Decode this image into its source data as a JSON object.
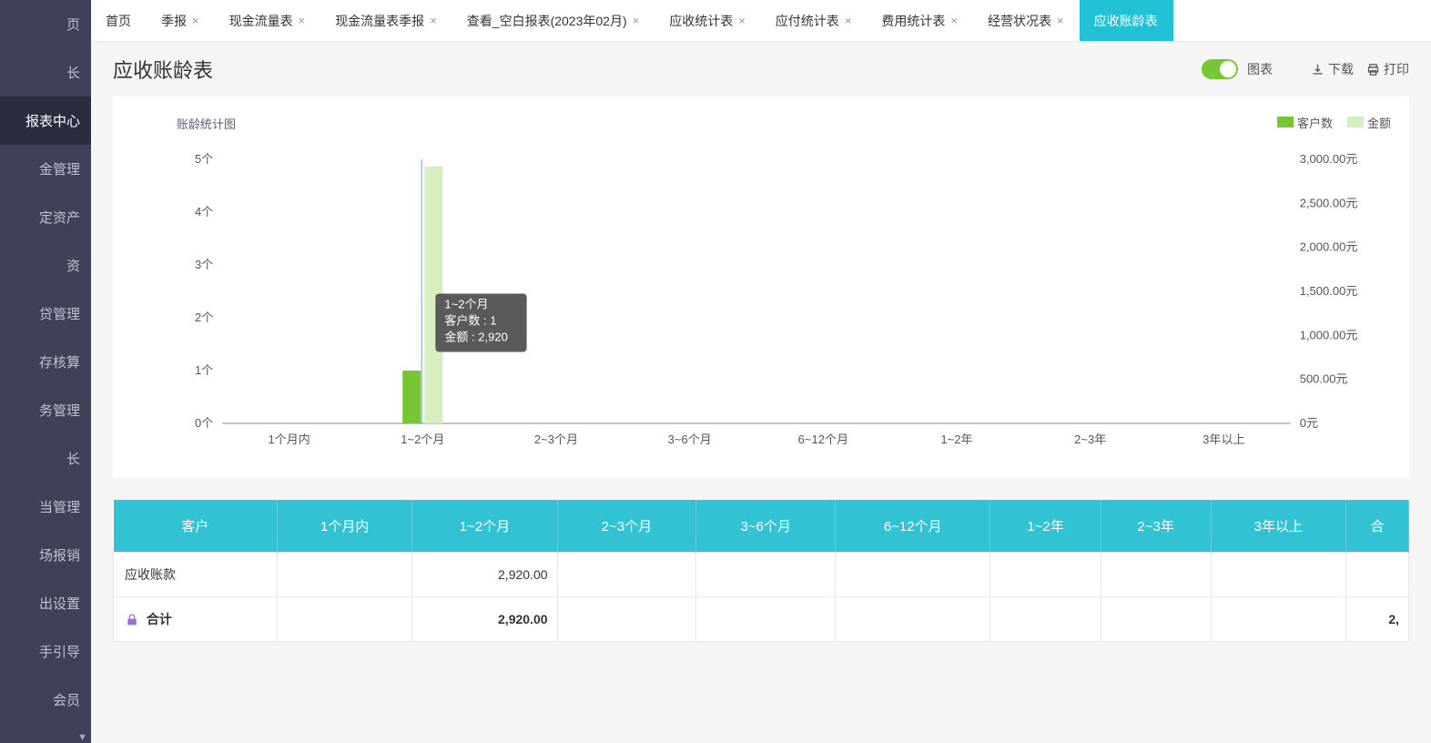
{
  "sidebar": {
    "items": [
      {
        "label": "页"
      },
      {
        "label": "长"
      },
      {
        "label": "报表中心",
        "active": true
      },
      {
        "label": "金管理"
      },
      {
        "label": "定资产"
      },
      {
        "label": "资"
      },
      {
        "label": "贷管理"
      },
      {
        "label": "存核算"
      },
      {
        "label": "务管理"
      },
      {
        "label": "长"
      },
      {
        "label": "当管理"
      },
      {
        "label": "场报销"
      },
      {
        "label": "出设置"
      },
      {
        "label": "手引导"
      },
      {
        "label": "会员"
      }
    ]
  },
  "tabs": [
    {
      "label": "首页",
      "closable": false
    },
    {
      "label": "季报",
      "closable": true
    },
    {
      "label": "现金流量表",
      "closable": true
    },
    {
      "label": "现金流量表季报",
      "closable": true
    },
    {
      "label": "查看_空白报表(2023年02月)",
      "closable": true
    },
    {
      "label": "应收统计表",
      "closable": true
    },
    {
      "label": "应付统计表",
      "closable": true
    },
    {
      "label": "费用统计表",
      "closable": true
    },
    {
      "label": "经营状况表",
      "closable": true
    },
    {
      "label": "应收账龄表",
      "closable": false,
      "active": true
    }
  ],
  "header": {
    "title": "应收账龄表",
    "chart_switch_label": "图表",
    "download_label": "下载",
    "print_label": "打印"
  },
  "legend": {
    "series_a": "客户数",
    "series_b": "金额"
  },
  "chart": {
    "title": "账龄统计图",
    "type": "bar-dual-axis",
    "categories": [
      "1个月内",
      "1~2个月",
      "2~3个月",
      "3~6个月",
      "6~12个月",
      "1~2年",
      "2~3年",
      "3年以上"
    ],
    "series_customers": {
      "name": "客户数",
      "color": "#76c733",
      "values": [
        0,
        1,
        0,
        0,
        0,
        0,
        0,
        0
      ]
    },
    "series_amount": {
      "name": "金额",
      "color": "#d7eec0",
      "values": [
        0,
        2920,
        0,
        0,
        0,
        0,
        0,
        0
      ]
    },
    "left_axis": {
      "min": 0,
      "max": 5,
      "step": 1,
      "suffix": "个"
    },
    "right_axis": {
      "min": 0,
      "max": 3000,
      "step": 500,
      "suffix": "元",
      "decimals": 2
    },
    "grid_color": "#e9e9e9",
    "background": "#ffffff",
    "highlight_index": 1,
    "highlight_line_color": "#3bb8ff",
    "tooltip": {
      "title": "1~2个月",
      "line1": "客户数 : 1",
      "line2": "金额 : 2,920",
      "bg": "#5a5a5a"
    }
  },
  "table": {
    "columns": [
      "客户",
      "1个月内",
      "1~2个月",
      "2~3个月",
      "3~6个月",
      "6~12个月",
      "1~2年",
      "2~3年",
      "3年以上",
      "合"
    ],
    "rows": [
      {
        "label": "应收账款",
        "cells": [
          "",
          "",
          "2,920.00",
          "",
          "",
          "",
          "",
          "",
          "",
          ""
        ]
      }
    ],
    "total": {
      "label": "合计",
      "cells": [
        "",
        "",
        "2,920.00",
        "",
        "",
        "",
        "",
        "",
        "",
        "2,"
      ]
    }
  }
}
